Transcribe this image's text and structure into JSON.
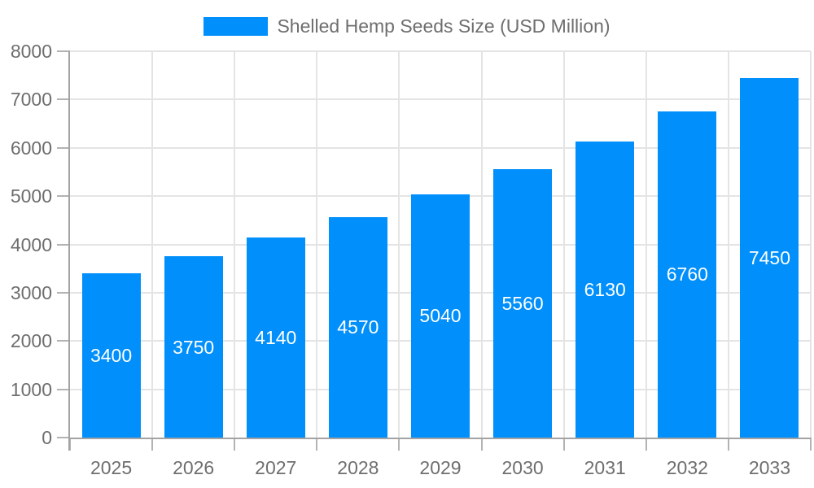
{
  "chart_data": {
    "type": "bar",
    "title": "Shelled Hemp Seeds Size (USD Million)",
    "legend": {
      "position": "top",
      "series_name": "Shelled Hemp Seeds Size (USD Million)"
    },
    "categories": [
      "2025",
      "2026",
      "2027",
      "2028",
      "2029",
      "2030",
      "2031",
      "2032",
      "2033"
    ],
    "values": [
      3400,
      3750,
      4140,
      4570,
      5040,
      5560,
      6130,
      6760,
      7450
    ],
    "xlabel": "",
    "ylabel": "",
    "ylim": [
      0,
      8000
    ],
    "yticks": [
      0,
      1000,
      2000,
      3000,
      4000,
      5000,
      6000,
      7000,
      8000
    ],
    "grid": true,
    "data_labels_position": "inside-center",
    "colors": {
      "bar": "#008FFB",
      "grid_line": "#e4e4e4",
      "axis_line": "#a3a3a3",
      "tick_mark": "#b3b3b3",
      "axis_label": "#6e6e6e",
      "data_label": "#ffffff",
      "background": "#ffffff"
    }
  }
}
